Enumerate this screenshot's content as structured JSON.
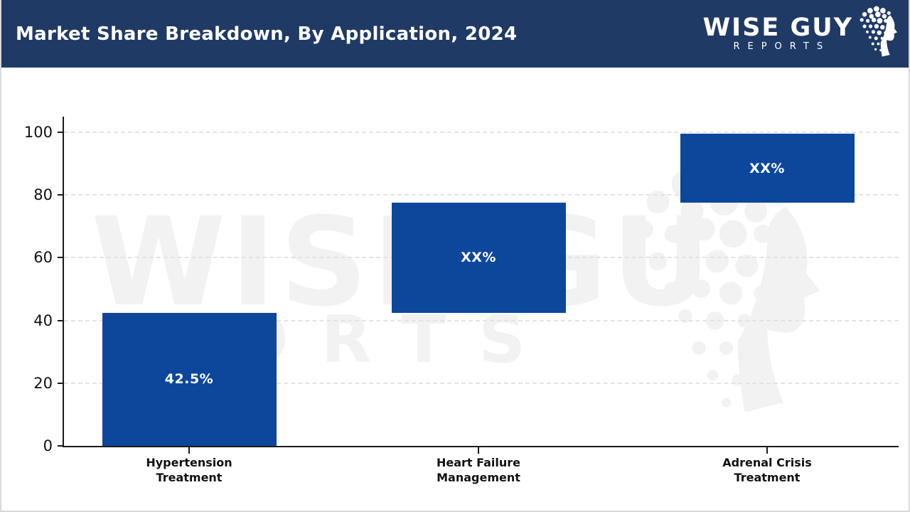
{
  "header": {
    "title": "Market Share Breakdown, By Application, 2024",
    "logo": {
      "line1": "WISE GUY",
      "line2": "REPORTS"
    },
    "bg_color": "#203a66"
  },
  "watermark": {
    "line1": "WISE GU",
    "line2": "PORTS"
  },
  "chart_data": {
    "type": "bar",
    "subtype": "floating-segment-bars",
    "title": "Market Share Breakdown, By Application, 2024",
    "categories": [
      [
        "Hypertension",
        "Treatment"
      ],
      [
        "Heart Failure",
        "Management"
      ],
      [
        "Adrenal Crisis",
        "Treatment"
      ]
    ],
    "series": [
      {
        "category": "Hypertension Treatment",
        "start": 0,
        "end": 42.5,
        "label": "42.5%"
      },
      {
        "category": "Heart Failure Management",
        "start": 42.5,
        "end": 77.5,
        "label": "XX%"
      },
      {
        "category": "Adrenal Crisis Treatment",
        "start": 77.5,
        "end": 99.5,
        "label": "XX%"
      }
    ],
    "xlabel": "",
    "ylabel": "",
    "yticks": [
      0,
      20,
      40,
      60,
      80,
      100
    ],
    "ylim": [
      0,
      105
    ],
    "grid": "horizontal-dashed",
    "legend": "none",
    "colors": {
      "bar": "#0d479c",
      "bar_label": "#ffffff",
      "axis": "#1a1a1a",
      "grid": "#e3e3e3",
      "header_bg": "#203a66",
      "watermark": "#f2f2f2",
      "page_border": "#d9d9d9"
    }
  }
}
